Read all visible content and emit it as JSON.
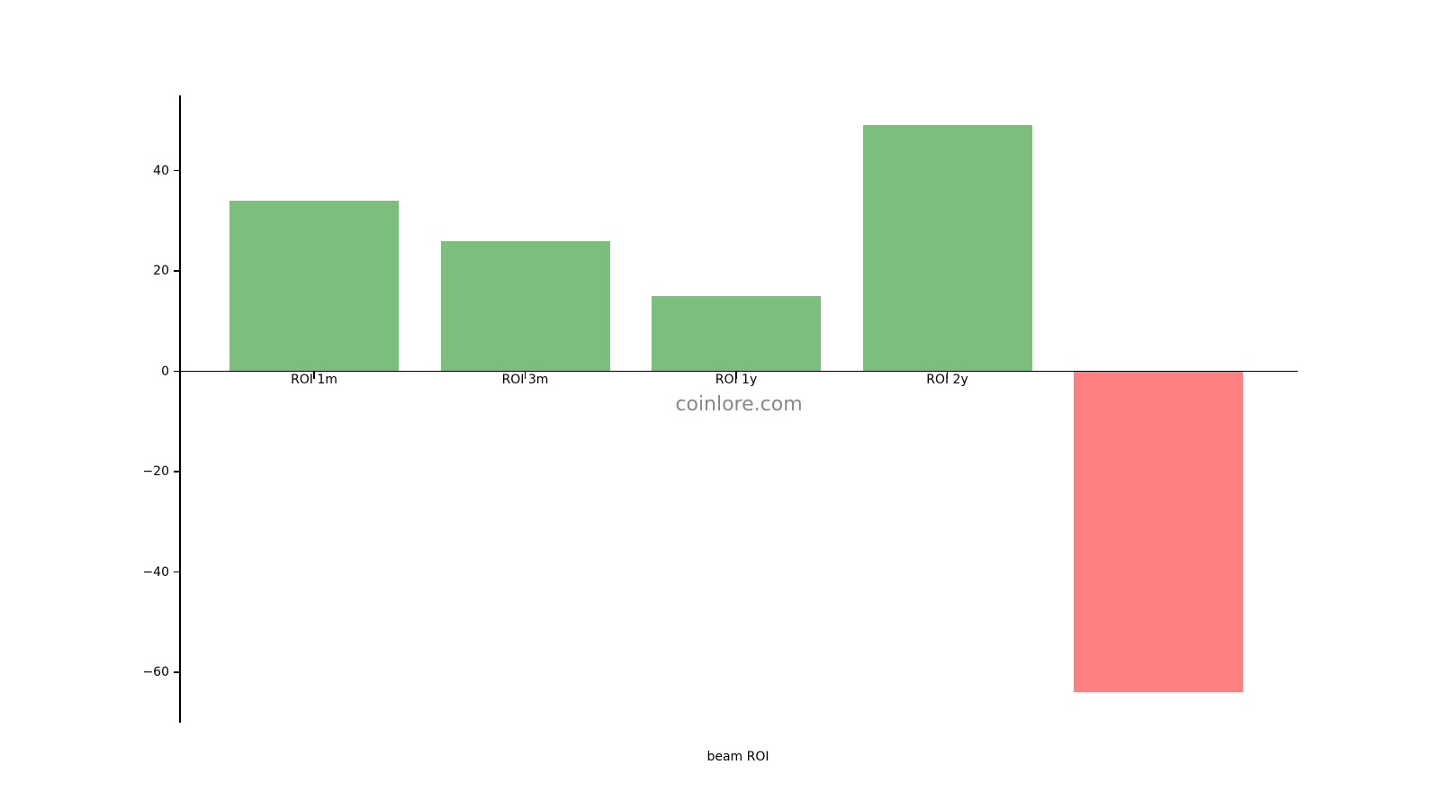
{
  "page": {
    "background": "#ffffff"
  },
  "watermark": {
    "text": "coinlore.com",
    "color": "#888888"
  },
  "chart_data": {
    "type": "bar",
    "title": "",
    "xlabel": "beam ROI",
    "ylabel": "",
    "categories": [
      "ROI 1m",
      "ROI 3m",
      "ROI 1y",
      "ROI 2y",
      ""
    ],
    "values": [
      34,
      26,
      15,
      49,
      -64
    ],
    "bar_colors": [
      "#7cbf7c",
      "#7cbf7c",
      "#7cbf7c",
      "#7cbf7c",
      "#ff8080"
    ],
    "positive_color": "#7cbf7c",
    "negative_color": "#ff8080",
    "yticks": [
      40,
      20,
      0,
      -20,
      -40,
      -60
    ],
    "ytick_labels": [
      "40",
      "20",
      "0",
      "−20",
      "−40",
      "−60"
    ],
    "ylim": [
      -70,
      55
    ],
    "grid": false,
    "legend_position": "none",
    "axis_color": "#000000"
  }
}
